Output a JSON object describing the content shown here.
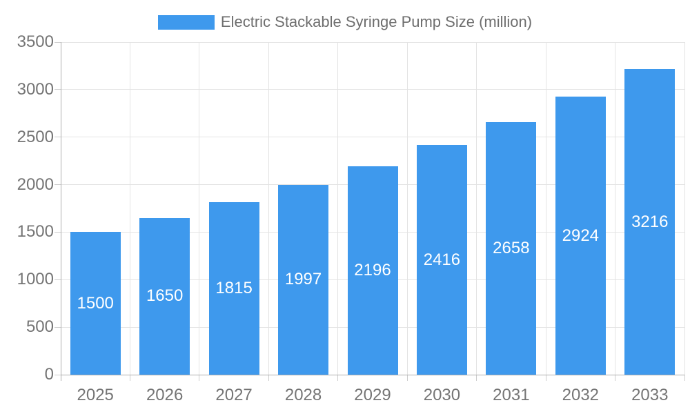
{
  "chart_data": {
    "type": "bar",
    "title": "Electric Stackable Syringe Pump Size (million)",
    "categories": [
      "2025",
      "2026",
      "2027",
      "2028",
      "2029",
      "2030",
      "2031",
      "2032",
      "2033"
    ],
    "values": [
      1500,
      1650,
      1815,
      1997,
      2196,
      2416,
      2658,
      2924,
      3216
    ],
    "series": [
      {
        "name": "Electric Stackable Syringe Pump Size (million)",
        "values": [
          1500,
          1650,
          1815,
          1997,
          2196,
          2416,
          2658,
          2924,
          3216
        ]
      }
    ],
    "xlabel": "",
    "ylabel": "",
    "ylim": [
      0,
      3500
    ],
    "ytick_step": 500,
    "ytick_labels": [
      "0",
      "500",
      "1000",
      "1500",
      "2000",
      "2500",
      "3000",
      "3500"
    ],
    "grid": true,
    "legend_position": "top-center",
    "value_labels": "inside-center-white"
  },
  "legend": {
    "label": "Electric Stackable Syringe Pump Size (million)"
  },
  "colors": {
    "bar": "#3E99ED",
    "axis_text": "#757575",
    "legend_text": "#6E6E6E",
    "bar_label_text": "#FFFFFF",
    "gridline": "#E3E3E3",
    "axis_line": "#ADADAD",
    "tick": "#CCCCCC",
    "background": "#FFFFFF"
  }
}
